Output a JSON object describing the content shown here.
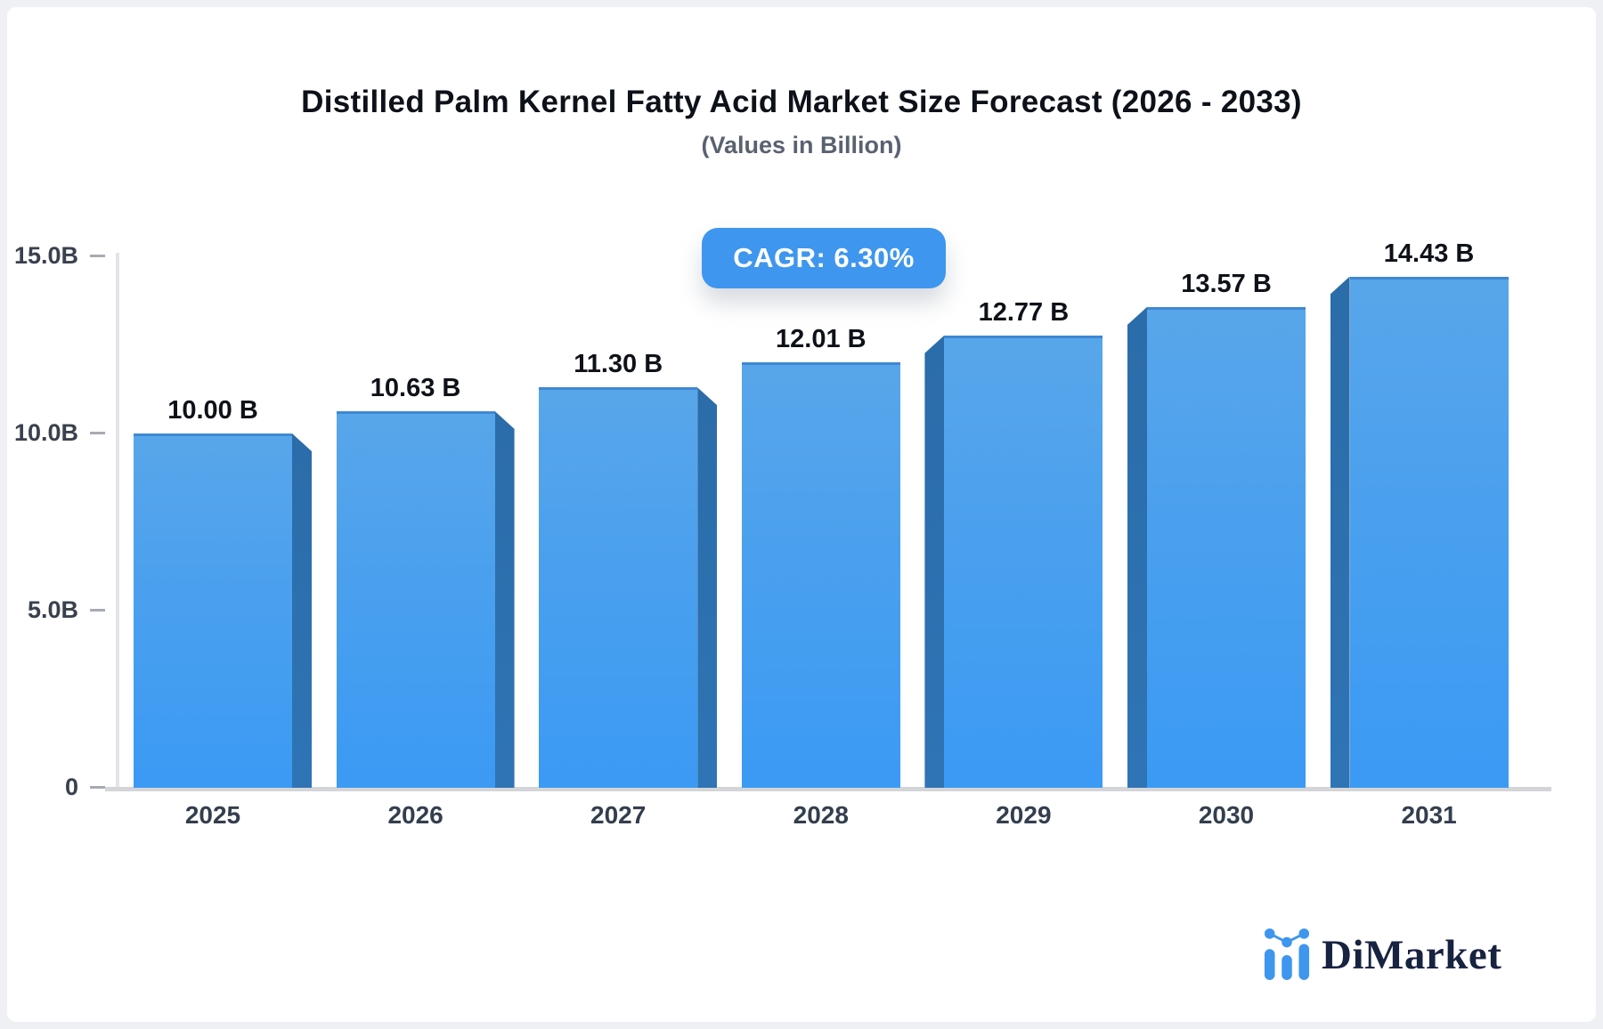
{
  "title": "Distilled Palm Kernel Fatty Acid Market Size Forecast (2026 - 2033)",
  "subtitle": "(Values in Billion)",
  "cagr_badge": "CAGR: 6.30%",
  "chart_data": {
    "type": "bar",
    "categories": [
      "2025",
      "2026",
      "2027",
      "2028",
      "2029",
      "2030",
      "2031"
    ],
    "values": [
      10.0,
      10.63,
      11.3,
      12.01,
      12.77,
      13.57,
      14.43
    ],
    "bar_labels": [
      "10.00 B",
      "10.63 B",
      "11.30 B",
      "12.01 B",
      "12.77 B",
      "13.57 B",
      "14.43 B"
    ],
    "title": "Distilled Palm Kernel Fatty Acid Market Size Forecast (2026 - 2033)",
    "subtitle": "(Values in Billion)",
    "annotation": "CAGR: 6.30%",
    "xlabel": "",
    "ylabel": "",
    "ylim": [
      0,
      15
    ],
    "yticks": [
      {
        "value": 15,
        "label": "15.0B"
      },
      {
        "value": 10,
        "label": "10.0B"
      },
      {
        "value": 5,
        "label": "5.0B"
      },
      {
        "value": 0,
        "label": "0"
      }
    ],
    "grid": false,
    "legend": "none",
    "style": "3d-beveled-bars, perspective fanning away from center bar"
  },
  "colors": {
    "bar_top": "#58a6ea",
    "bar_bottom": "#3b9af4",
    "bar_side_3d": "#2f74b5",
    "badge_bg": "#3e96ee",
    "axis_line": "#e3e4e8",
    "baseline": "#d4d5d9",
    "title_text": "#0d1119",
    "subtitle_text": "#5a6271",
    "logo_text": "#182241",
    "logo_icon_blue": "#3e96ee"
  },
  "branding": {
    "logo_text": "DiMarket",
    "logo_icon": "bar-chart-icon"
  }
}
